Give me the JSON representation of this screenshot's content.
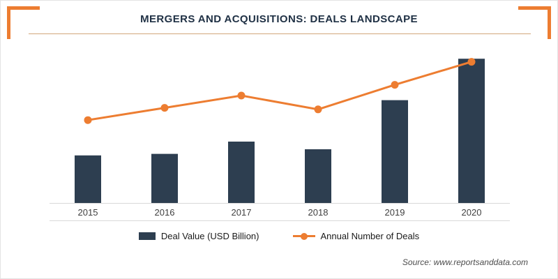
{
  "page": {
    "title": "MERGERS AND ACQUISITIONS: DEALS LANDSCAPE",
    "source": "Source: www.reportsanddata.com",
    "accent_color": "#ED7D31",
    "bar_color": "#2D3E50"
  },
  "legend": {
    "bar_label": "Deal Value (USD Billion)",
    "line_label": "Annual Number of Deals"
  },
  "chart_data": {
    "type": "bar+line combo",
    "title": "MERGERS AND ACQUISITIONS: DEALS LANDSCAPE",
    "categories": [
      "2015",
      "2016",
      "2017",
      "2018",
      "2019",
      "2020"
    ],
    "series": [
      {
        "name": "Deal Value (USD Billion)",
        "type": "bar",
        "values": [
          31,
          32,
          40,
          35,
          67,
          94
        ]
      },
      {
        "name": "Annual Number of Deals",
        "type": "line",
        "values": [
          54,
          62,
          70,
          61,
          77,
          92
        ]
      }
    ],
    "xlabel": "",
    "ylabel": "",
    "ylim": [
      0,
      100
    ],
    "grid": false,
    "y_axis_visible": false,
    "legend_position": "bottom"
  }
}
